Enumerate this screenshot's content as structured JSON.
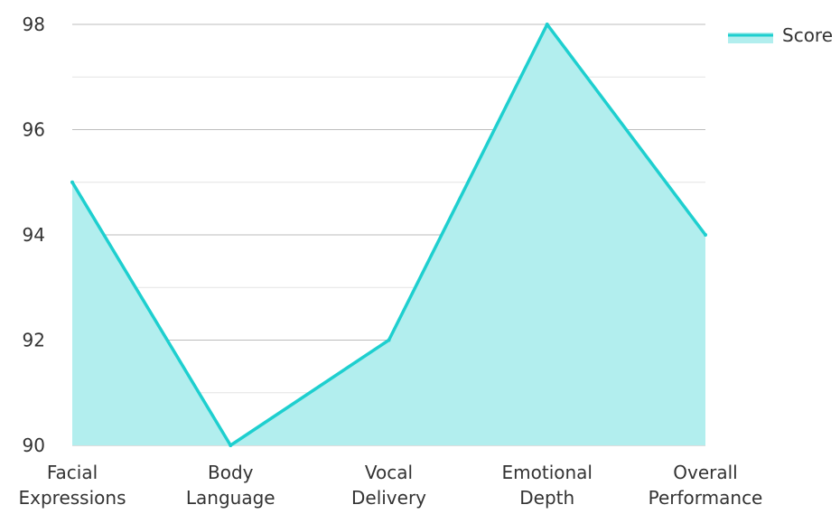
{
  "chart_data": {
    "type": "area",
    "title": "",
    "xlabel": "",
    "ylabel": "",
    "categories": [
      [
        "Facial",
        "Expressions"
      ],
      [
        "Body",
        "Language"
      ],
      [
        "Vocal",
        "Delivery"
      ],
      [
        "Emotional",
        "Depth"
      ],
      [
        "Overall",
        "Performance"
      ]
    ],
    "series": [
      {
        "name": "Score",
        "values": [
          95,
          90,
          92,
          98,
          94
        ],
        "line_color": "#1ecfcf",
        "fill_color": "#b2eeee"
      }
    ],
    "ylim": [
      90,
      98
    ],
    "yticks": [
      90,
      92,
      94,
      96,
      98
    ],
    "grid": true,
    "legend": {
      "position": "top-right",
      "label": "Score"
    }
  }
}
